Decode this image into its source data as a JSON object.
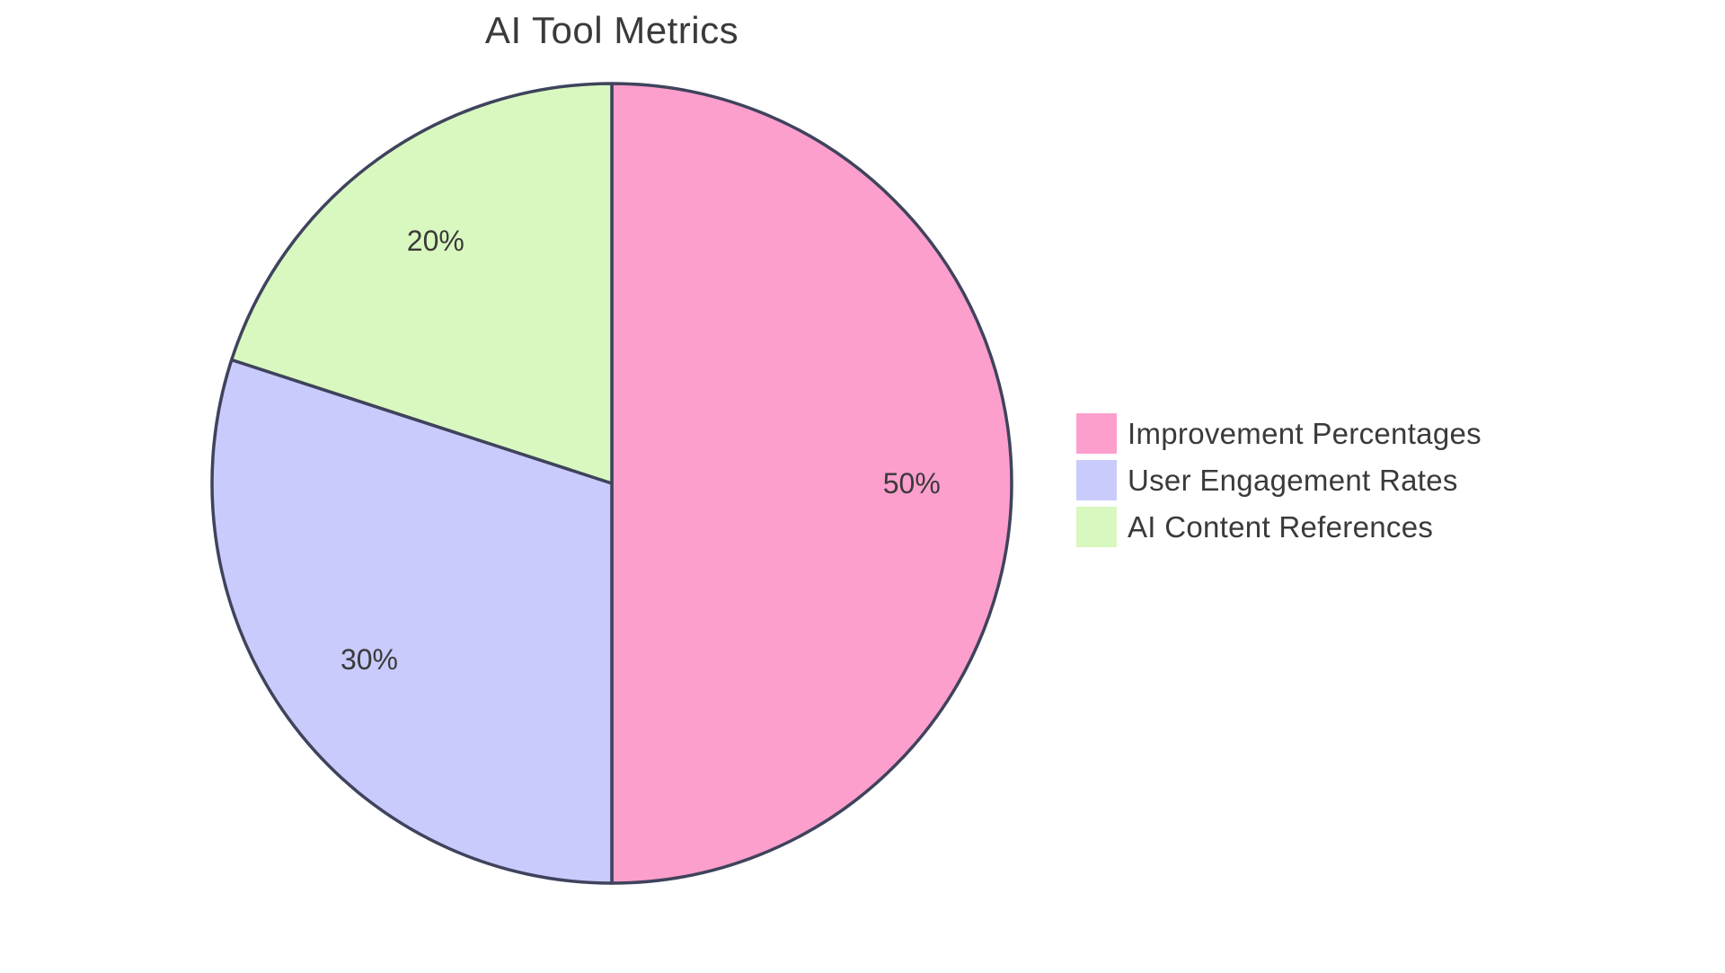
{
  "page": {
    "background_color": "#FFFFFF"
  },
  "chart_data": {
    "type": "pie",
    "title": "AI Tool Metrics",
    "categories": [
      "Improvement Percentages",
      "User Engagement Rates",
      "AI Content References"
    ],
    "values": [
      50,
      30,
      20
    ],
    "value_labels": [
      "50%",
      "30%",
      "20%"
    ],
    "colors": [
      "#FC9FCD",
      "#C9CBFC",
      "#D9F8BF"
    ],
    "stroke_color": "#3F435C",
    "text_color": "#3A3A3A",
    "legend_position": "right",
    "start_angle": "top",
    "direction": "clockwise"
  },
  "legend": {
    "items": [
      {
        "label": "Improvement Percentages",
        "color": "#FC9FCD"
      },
      {
        "label": "User Engagement Rates",
        "color": "#C9CBFC"
      },
      {
        "label": "AI Content References",
        "color": "#D9F8BF"
      }
    ]
  }
}
